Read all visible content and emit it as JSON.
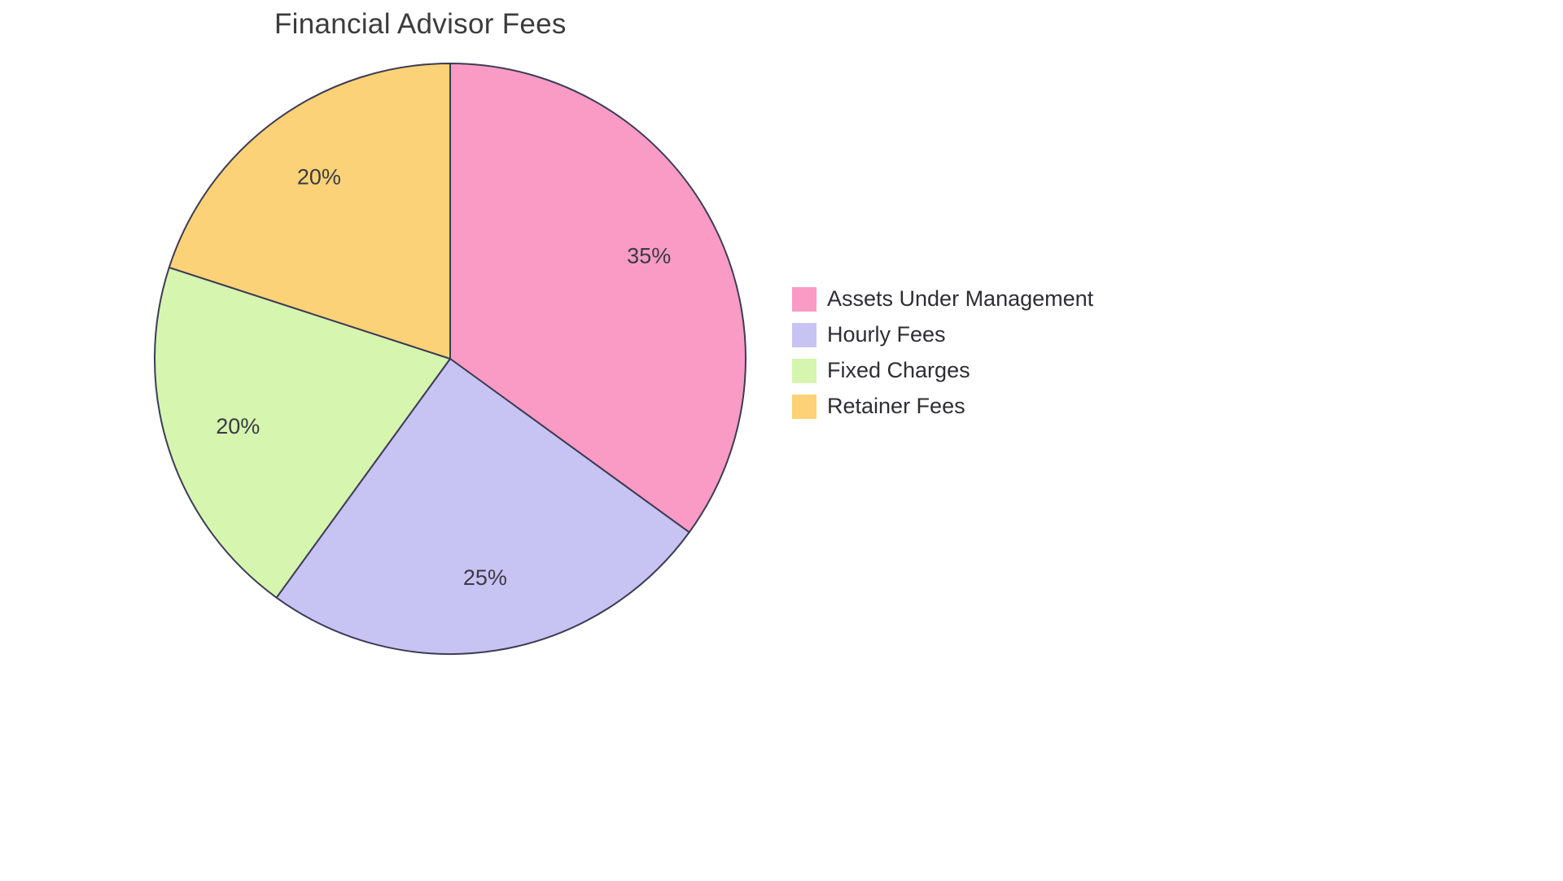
{
  "title": "Financial Advisor Fees",
  "chart_data": {
    "type": "pie",
    "title": "Financial Advisor Fees",
    "labels": [
      "Assets Under Management",
      "Hourly Fees",
      "Fixed Charges",
      "Retainer Fees"
    ],
    "values": [
      35,
      25,
      20,
      20
    ],
    "unit": "%",
    "slice_labels": [
      "35%",
      "25%",
      "20%",
      "20%"
    ],
    "colors": [
      "#F99BC5",
      "#C7C3F3",
      "#D6F5AF",
      "#FBD277"
    ],
    "stroke_color": "#3C3C55",
    "text_color": "#3A3A45",
    "background": "#FFFFFF",
    "legend_position": "right",
    "start_angle_deg": 0,
    "direction": "clockwise"
  }
}
